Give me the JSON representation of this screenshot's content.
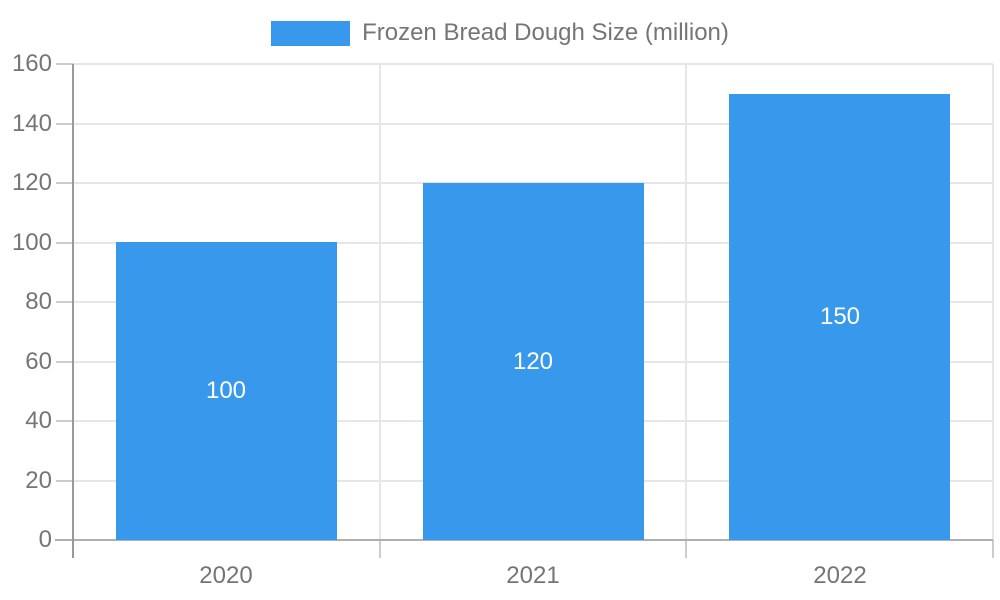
{
  "chart_data": {
    "type": "bar",
    "title": "Frozen Bread Dough Size (million)",
    "categories": [
      "2020",
      "2021",
      "2022"
    ],
    "values": [
      100,
      120,
      150
    ],
    "series": [
      {
        "name": "Frozen Bread Dough Size (million)",
        "values": [
          100,
          120,
          150
        ]
      }
    ],
    "xlabel": "",
    "ylabel": "",
    "ylim": [
      0,
      160
    ],
    "ytick_step": 20,
    "ytick_labels": [
      "0",
      "20",
      "40",
      "60",
      "80",
      "100",
      "120",
      "140",
      "160"
    ],
    "data_labels": [
      "100",
      "120",
      "150"
    ],
    "data_label_position": "inside-center",
    "grid": true,
    "legend_position": "top-center",
    "colors": {
      "bar": "#3899ec",
      "data_label_text": "#ffffff",
      "axis_text": "#757575",
      "gridline": "#e6e6e6",
      "axis_line": "#999999",
      "baseline": "#b0b0b0",
      "tick": "#cccccc",
      "background": "#ffffff"
    }
  }
}
